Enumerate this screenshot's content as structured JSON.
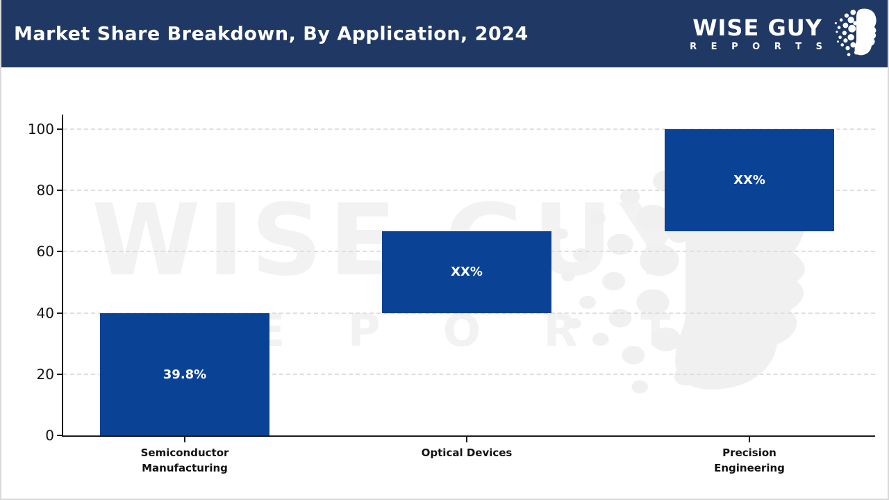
{
  "header": {
    "title": "Market Share Breakdown, By Application, 2024",
    "logo": {
      "line1": "WISE GUY",
      "line2": "R E P O R T S"
    }
  },
  "watermark": {
    "line1": "WISE GUY",
    "line2": "R E P O R T S"
  },
  "chart_data": {
    "type": "bar",
    "subtype": "waterfall",
    "title": "Market Share Breakdown, By Application, 2024",
    "categories": [
      "Semiconductor Manufacturing",
      "Optical Devices",
      "Precision Engineering"
    ],
    "categories_lines": [
      [
        "Semiconductor",
        "Manufacturing"
      ],
      [
        "Optical Devices"
      ],
      [
        "Precision",
        "Engineering"
      ]
    ],
    "segments": [
      {
        "category": "Semiconductor Manufacturing",
        "start": 0,
        "end": 39.8,
        "label": "39.8%"
      },
      {
        "category": "Optical Devices",
        "start": 40,
        "end": 66.6,
        "label": "XX%"
      },
      {
        "category": "Precision Engineering",
        "start": 66.6,
        "end": 100,
        "label": "XX%"
      }
    ],
    "xlabel": "",
    "ylabel": "",
    "ylim": [
      0,
      100
    ],
    "yticks": [
      "0",
      "20",
      "40",
      "60",
      "80",
      "100"
    ],
    "grid": "horizontal-dashed",
    "legend": "none"
  },
  "colors": {
    "header_bg": "#203864",
    "bar": "#0a4296",
    "bar_label": "#ffffff",
    "axis": "#1a1a1a",
    "grid": "#dedede",
    "watermark": "#f2f2f2",
    "page_border": "#d9d9d9"
  }
}
